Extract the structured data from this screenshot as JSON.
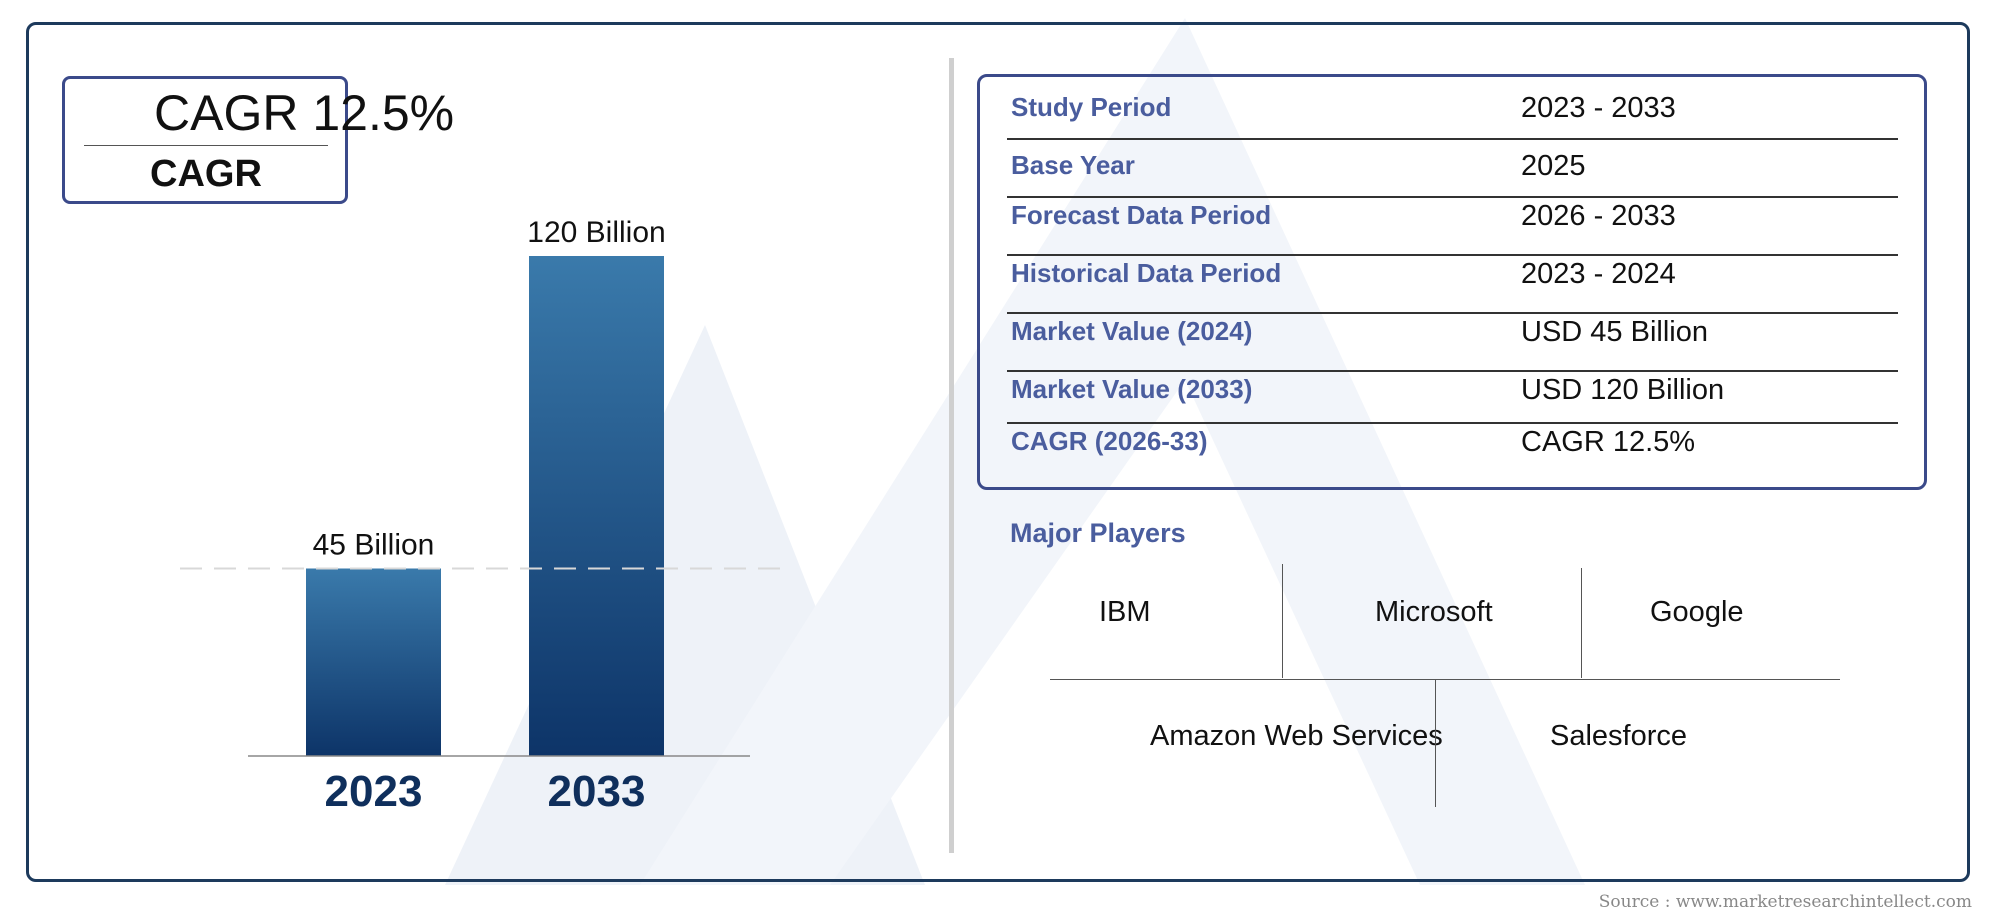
{
  "colors": {
    "frame": "#1d3a5c",
    "box_border": "#3b4a8a",
    "label_blue": "#4a5d9e",
    "bar_top": "#3a7aab",
    "bar_bottom": "#0d3468",
    "year_label": "#0f2f5c"
  },
  "cagr_badge": {
    "value": "CAGR 12.5%",
    "label": "CAGR"
  },
  "chart_data": {
    "type": "bar",
    "categories": [
      "2023",
      "2033"
    ],
    "values": [
      45,
      120
    ],
    "value_labels": [
      "45 Billion",
      "120 Billion"
    ],
    "unit": "Billion",
    "ylim": [
      0,
      120
    ],
    "reference_line_at": 45,
    "grid": false,
    "legend": "none",
    "title": "",
    "xlabel": "",
    "ylabel": ""
  },
  "info_table": {
    "rows": [
      {
        "label": "Study Period",
        "value": "2023 - 2033"
      },
      {
        "label": "Base Year",
        "value": "2025"
      },
      {
        "label": "Forecast Data Period",
        "value": "2026 - 2033"
      },
      {
        "label": "Historical Data Period",
        "value": "2023 - 2024"
      },
      {
        "label": "Market Value (2024)",
        "value": "USD 45 Billion"
      },
      {
        "label": "Market Value (2033)",
        "value": "USD 120 Billion"
      },
      {
        "label": "CAGR (2026-33)",
        "value": "CAGR 12.5%"
      }
    ]
  },
  "players": {
    "title": "Major Players",
    "names": [
      "IBM",
      "Microsoft",
      "Google",
      "Amazon Web Services",
      "Salesforce"
    ]
  },
  "source": "Source : www.marketresearchintellect.com"
}
